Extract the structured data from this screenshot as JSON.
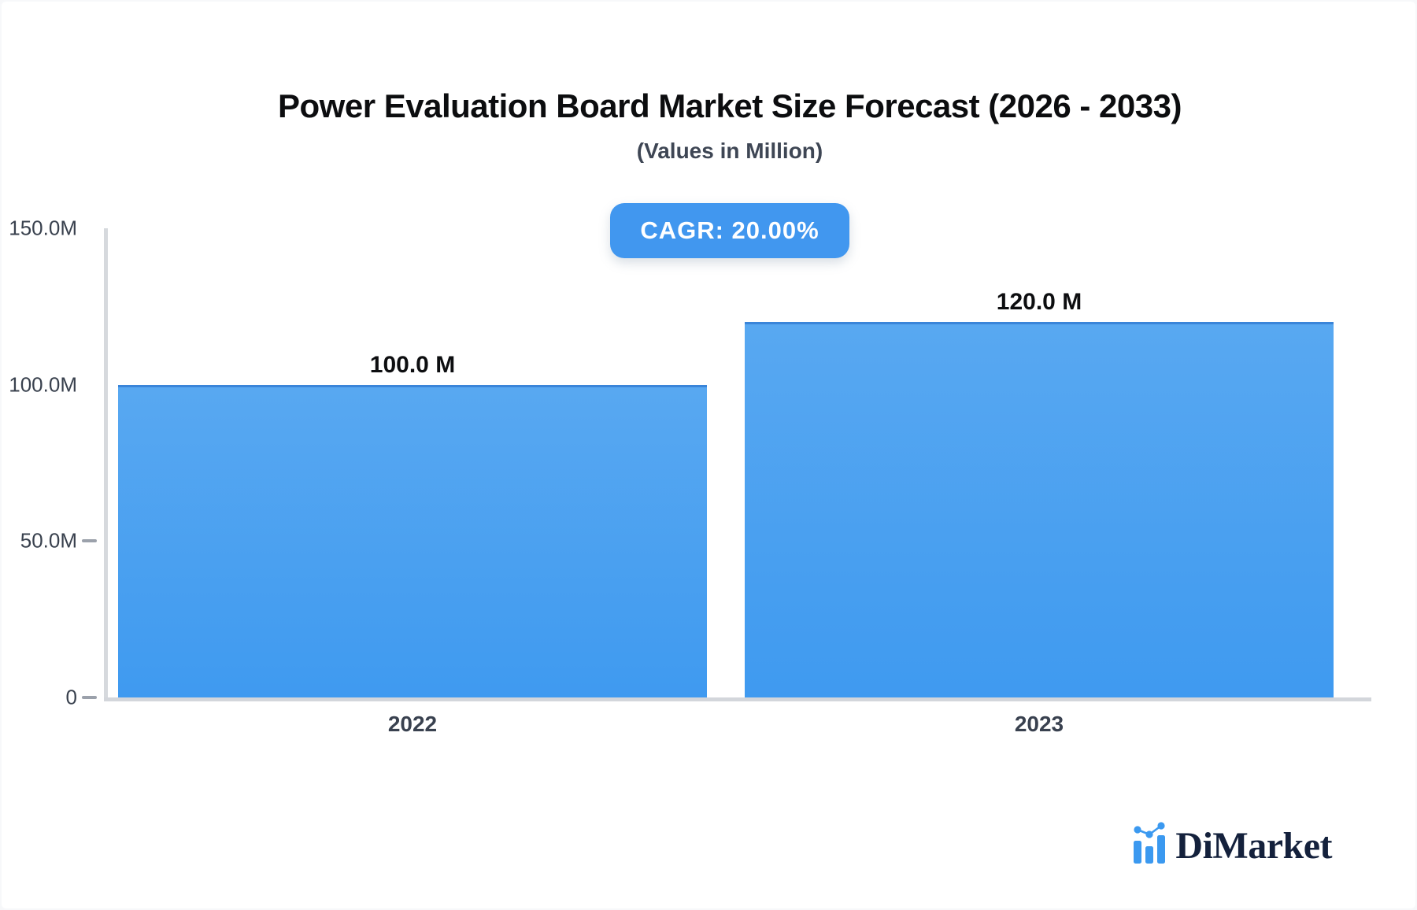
{
  "header": {
    "title": "Power Evaluation Board Market Size Forecast (2026 - 2033)",
    "subtitle": "(Values in Million)"
  },
  "badge": {
    "label": "CAGR: 20.00%",
    "color": "#4197ef"
  },
  "chart_data": {
    "type": "bar",
    "title": "Power Evaluation Board Market Size Forecast (2026 - 2033)",
    "subtitle": "(Values in Million)",
    "unit": "Million",
    "categories": [
      "2022",
      "2023"
    ],
    "values": [
      100.0,
      120.0
    ],
    "value_labels": [
      "100.0 M",
      "120.0 M"
    ],
    "ylim": [
      0,
      150
    ],
    "yticks": [
      {
        "label": "150.0M",
        "value": 150,
        "dash": false
      },
      {
        "label": "100.0M",
        "value": 100,
        "dash": false
      },
      {
        "label": "50.0M",
        "value": 50,
        "dash": true
      },
      {
        "label": "0",
        "value": 0,
        "dash": true
      }
    ],
    "grid": false,
    "legend": "none",
    "bar_color_top": "#58a8f1",
    "bar_color_bottom": "#3f9af0",
    "bar_border_top_color": "#3a85d9"
  },
  "brand": {
    "name": "DiMarket",
    "icon": "bar-line-chart-icon",
    "text_color": "#14213c",
    "accent_color": "#3b99f0"
  }
}
